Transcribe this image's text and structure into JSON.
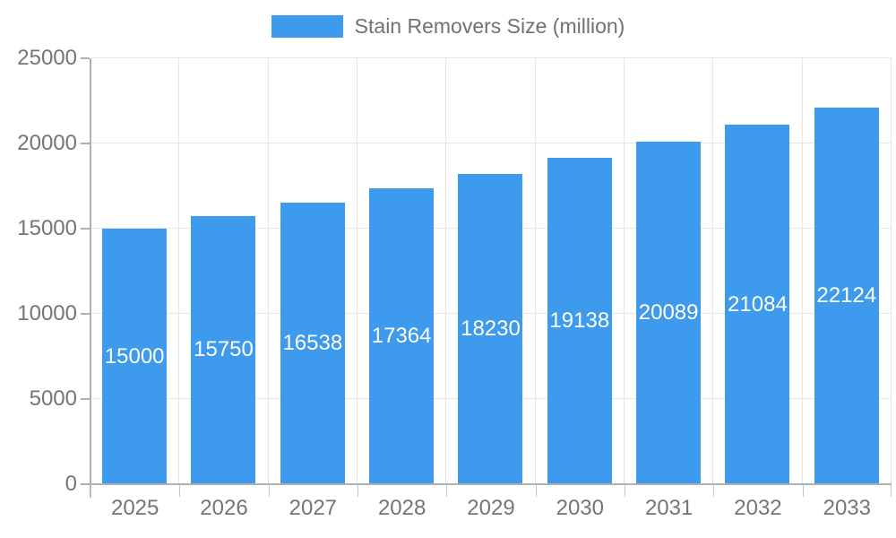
{
  "legend": {
    "label": "Stain Removers Size (million)"
  },
  "chart_data": {
    "type": "bar",
    "title": "Stain Removers Size (million)",
    "categories": [
      "2025",
      "2026",
      "2027",
      "2028",
      "2029",
      "2030",
      "2031",
      "2032",
      "2033"
    ],
    "series": [
      {
        "name": "Stain Removers Size (million)",
        "values": [
          15000,
          15750,
          16538,
          17364,
          18230,
          19138,
          20089,
          21084,
          22124
        ]
      }
    ],
    "xlabel": "",
    "ylabel": "",
    "ylim": [
      0,
      25000
    ],
    "yticks": [
      0,
      5000,
      10000,
      15000,
      20000,
      25000
    ],
    "grid": true,
    "legend_position": "top",
    "value_label_position": "inside-center"
  },
  "colors": {
    "bar": "#3d9aec",
    "bar_value_text": "#ffffff",
    "grid": "#e6e6e6",
    "axis": "#b0b0b0",
    "tick": "#c6c6c6",
    "text": "#757575"
  }
}
